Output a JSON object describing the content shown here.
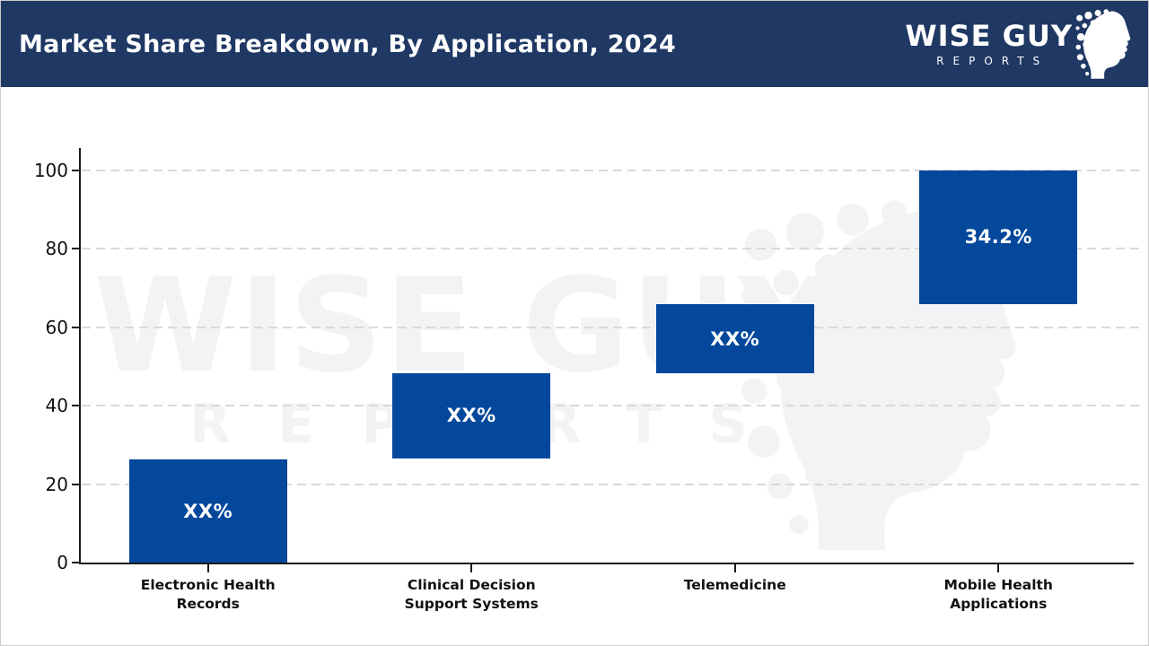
{
  "header": {
    "title": "Market Share Breakdown, By Application, 2024",
    "brand": {
      "line1": "WISE GUY",
      "line2": "REPORTS"
    }
  },
  "watermark": {
    "line1": "WISE GUY",
    "line2": "REPORTS"
  },
  "chart_data": {
    "type": "bar",
    "variant": "floating percentage segments (waterfall-style market share bars)",
    "title": "Market Share Breakdown, By Application, 2024",
    "categories": [
      "Electronic Health Records",
      "Clinical Decision Support Systems",
      "Telemedicine",
      "Mobile Health Applications"
    ],
    "segments": [
      {
        "category": "Electronic Health Records",
        "category_lines": [
          "Electronic Health",
          "Records"
        ],
        "start": 0,
        "end": 26.2,
        "label": "XX%"
      },
      {
        "category": "Clinical Decision Support Systems",
        "category_lines": [
          "Clinical Decision",
          "Support Systems"
        ],
        "start": 26.6,
        "end": 48.2,
        "label": "XX%"
      },
      {
        "category": "Telemedicine",
        "category_lines": [
          "Telemedicine"
        ],
        "start": 48.2,
        "end": 65.8,
        "label": "XX%"
      },
      {
        "category": "Mobile Health Applications",
        "category_lines": [
          "Mobile Health",
          "Applications"
        ],
        "start": 65.8,
        "end": 100,
        "label": "34.2%"
      }
    ],
    "yticks": [
      0,
      20,
      40,
      60,
      80,
      100
    ],
    "ylim": [
      0,
      105
    ],
    "xlabel": "",
    "ylabel": "",
    "grid": "horizontal-dashed",
    "legend": "none",
    "colors": {
      "bar": "#04489c",
      "bar_label": "#ffffff",
      "axis": "#1a1a1a",
      "gridline": "#d9d9d9",
      "header_bg": "#1f3864",
      "watermark": "#f3f3f5"
    }
  }
}
